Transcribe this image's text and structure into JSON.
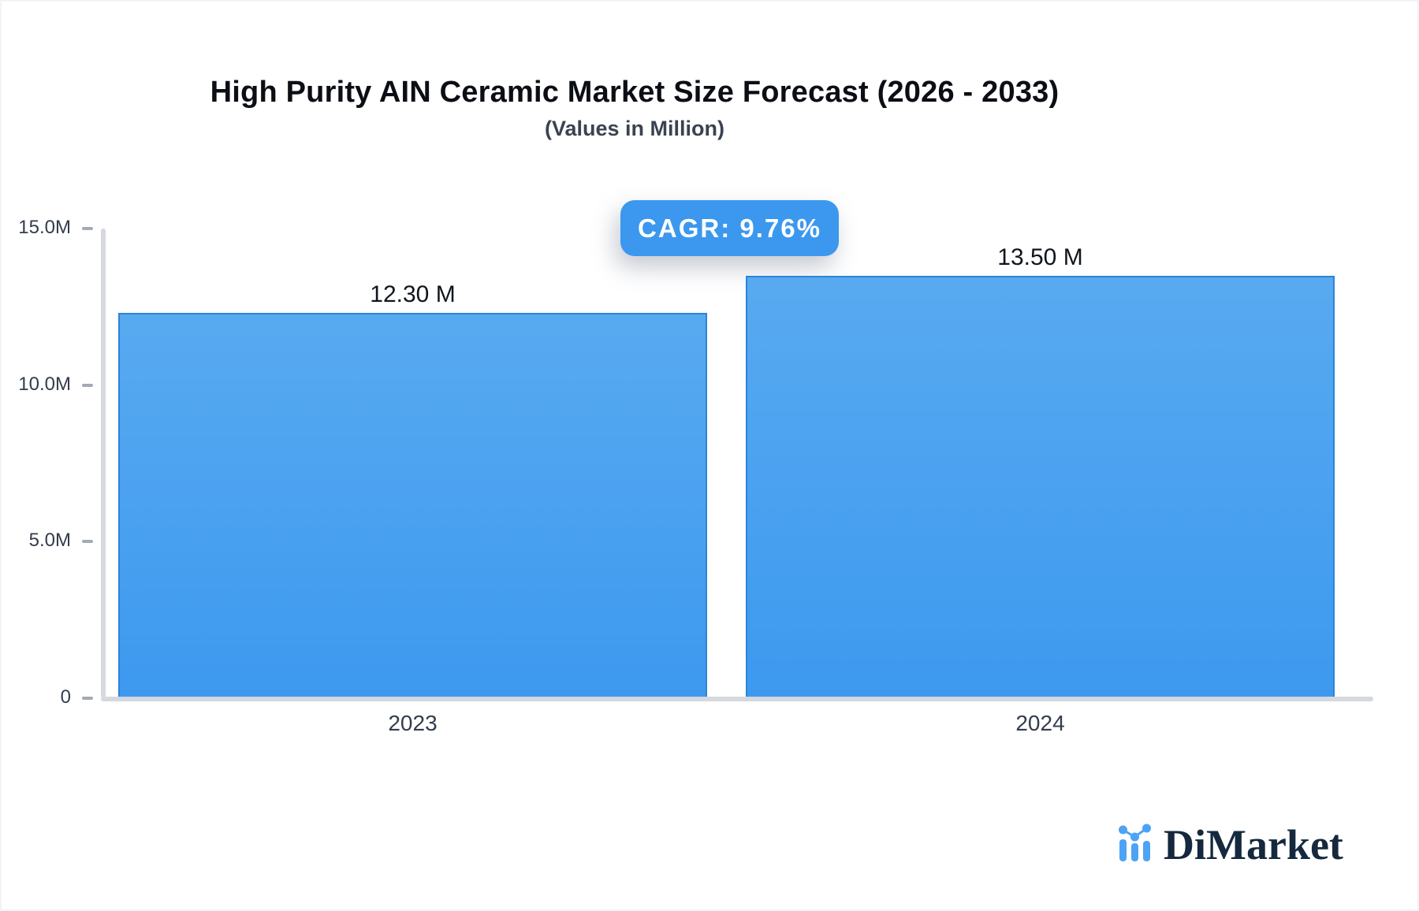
{
  "header": {
    "title": "High Purity AIN Ceramic Market Size Forecast (2026 - 2033)",
    "subtitle": "(Values in Million)",
    "cagr_badge": "CAGR: 9.76%"
  },
  "chart_data": {
    "type": "bar",
    "title": "High Purity AIN Ceramic Market Size Forecast (2026 - 2033)",
    "subtitle": "(Values in Million)",
    "unit": "Million",
    "categories": [
      "2023",
      "2024"
    ],
    "values": [
      12.3,
      13.5
    ],
    "value_labels": [
      "12.30 M",
      "13.50 M"
    ],
    "cagr_percent": 9.76,
    "ylim": [
      0,
      15
    ],
    "y_ticks": [
      {
        "value": 0,
        "label": "0"
      },
      {
        "value": 5,
        "label": "5.0M"
      },
      {
        "value": 10,
        "label": "10.0M"
      },
      {
        "value": 15,
        "label": "15.0M"
      }
    ],
    "grid": false,
    "legend": "none"
  },
  "branding": {
    "logo_text": "DiMarket",
    "logo_icon": "bar-line-chart-icon"
  },
  "colors": {
    "bar_fill_top": "#58AAF0",
    "bar_fill_bottom": "#3D99EF",
    "bar_border": "#2B84DA",
    "badge_bg": "#3B98EE",
    "axis": "#D5D8DE",
    "tick": "#A4AAB3",
    "title_text": "#0B0E14",
    "muted_text": "#333D4D",
    "logo_navy": "#15283E",
    "logo_blue": "#4DA3F5"
  }
}
